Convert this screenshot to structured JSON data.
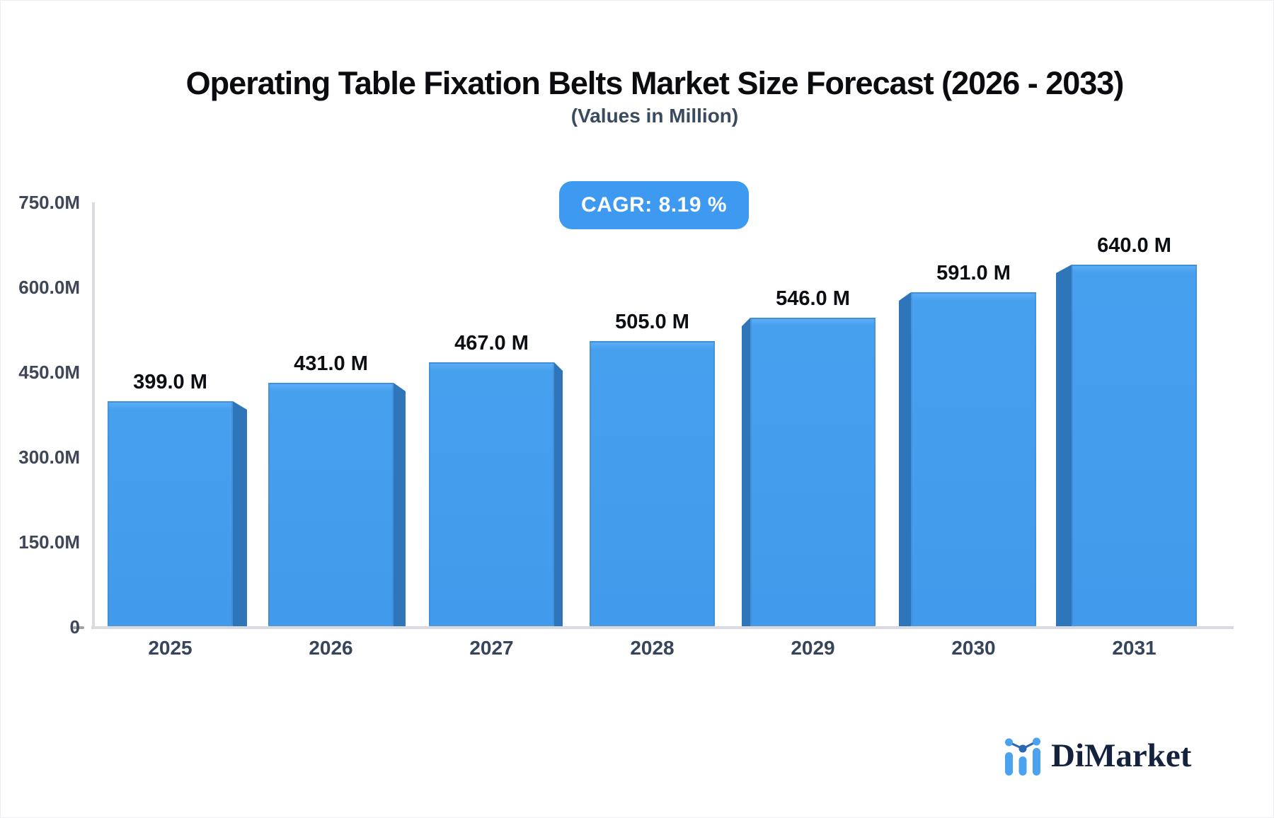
{
  "header": {
    "title": "Operating Table Fixation Belts Market Size Forecast (2026 - 2033)",
    "subtitle": "(Values in Million)"
  },
  "badge": {
    "label": "CAGR: 8.19 %"
  },
  "chart_data": {
    "type": "bar",
    "title": "Operating Table Fixation Belts Market Size Forecast (2026 - 2033)",
    "subtitle": "(Values in Million)",
    "categories": [
      "2025",
      "2026",
      "2027",
      "2028",
      "2029",
      "2030",
      "2031"
    ],
    "values": [
      399,
      431,
      467,
      505,
      546,
      591,
      640
    ],
    "value_labels": [
      "399.0 M",
      "431.0 M",
      "467.0 M",
      "505.0 M",
      "546.0 M",
      "591.0 M",
      "640.0 M"
    ],
    "y_ticks": [
      {
        "label": "750.0M",
        "value": 750
      },
      {
        "label": "600.0M",
        "value": 600
      },
      {
        "label": "450.0M",
        "value": 450
      },
      {
        "label": "300.0M",
        "value": 300
      },
      {
        "label": "150.0M",
        "value": 150
      },
      {
        "label": "0",
        "value": 0
      }
    ],
    "ylim": [
      0,
      750
    ],
    "xlabel": "",
    "ylabel": "",
    "grid": false,
    "legend": false,
    "style": "3d-extruded-bars"
  },
  "logo": {
    "name": "DiMarket",
    "icon": "bar-line-chart-icon"
  },
  "colors": {
    "bar_face_top": "#5cadf3",
    "bar_face": "#47a0ee",
    "bar_face_bottom": "#429aec",
    "bar_side": "#2e76b9",
    "bar_border": "#3c83c6",
    "badge_bg": "#3d9af0",
    "axis_line": "#dadae1",
    "tick_label": "#3d4758",
    "value_label": "#0b0e13",
    "logo_icon_blue": "#4aa2f0",
    "logo_icon_dark": "#2b66b4",
    "logo_text": "#14223e"
  }
}
